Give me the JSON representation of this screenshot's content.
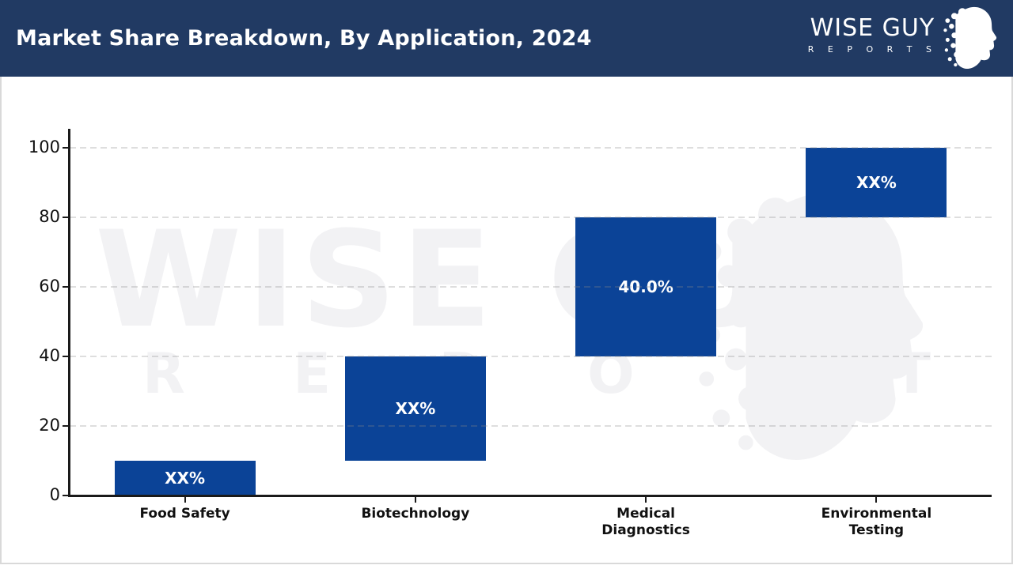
{
  "header": {
    "title": "Market Share Breakdown, By Application, 2024",
    "logo": {
      "brand": "WISE GUY",
      "sub": "R E P O R T S"
    }
  },
  "watermark": {
    "brand": "WISE GU",
    "sub": "R E P O R T S"
  },
  "colors": {
    "header_bg": "#213A63",
    "bar_fill": "#0B4397",
    "bar_label_text": "#FFFFFF",
    "axis": "#1A1A1A",
    "gridline": "#888888",
    "frame_border": "#D9D9D9",
    "watermark": "#F2F2F4"
  },
  "chart_data": {
    "type": "bar",
    "subtype": "waterfall",
    "title": "Market Share Breakdown, By Application, 2024",
    "categories": [
      "Food Safety",
      "Biotechnology",
      "Medical Diagnostics",
      "Environmental Testing"
    ],
    "segments": [
      {
        "category": "Food Safety",
        "start": 0,
        "end": 10,
        "label": "XX%"
      },
      {
        "category": "Biotechnology",
        "start": 10,
        "end": 40,
        "label": "XX%"
      },
      {
        "category": "Medical Diagnostics",
        "start": 40,
        "end": 80,
        "label": "40.0%"
      },
      {
        "category": "Environmental Testing",
        "start": 80,
        "end": 100,
        "label": "XX%"
      }
    ],
    "xlabel": "",
    "ylabel": "",
    "yticks": [
      0,
      20,
      40,
      60,
      80,
      100
    ],
    "ylim": [
      0,
      105
    ],
    "grid": "horizontal dashed, drawn above bars",
    "legend": null
  }
}
